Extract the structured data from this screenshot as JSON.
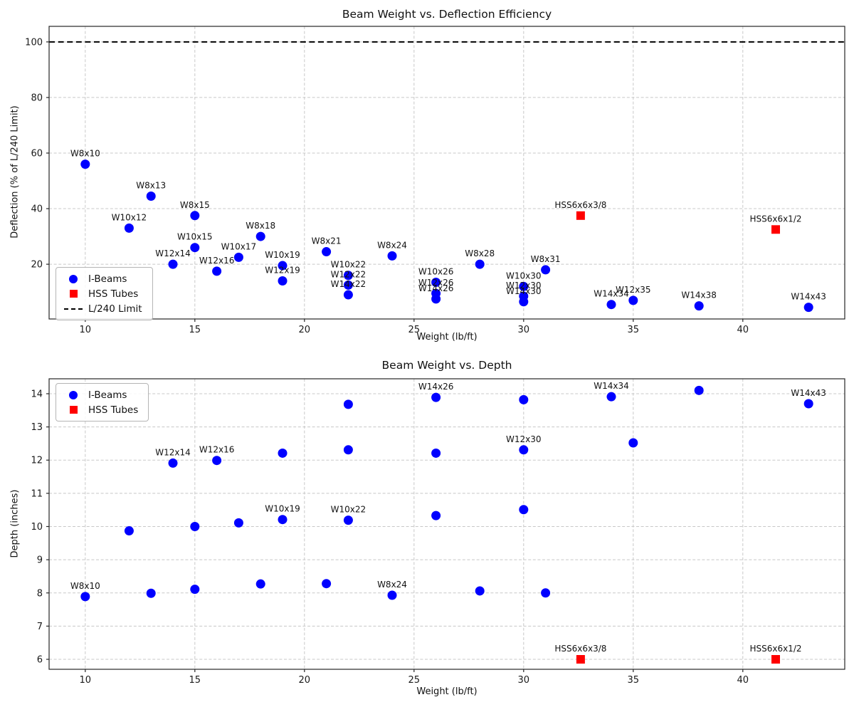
{
  "chart_data": [
    {
      "type": "scatter",
      "title": "Beam Weight vs. Deflection Efficiency",
      "xlabel": "Weight (lb/ft)",
      "ylabel": "Deflection (% of L/240 Limit)",
      "xlim": [
        8.35,
        44.65
      ],
      "ylim": [
        0.3,
        105.6
      ],
      "xticks": [
        10,
        15,
        20,
        25,
        30,
        35,
        40
      ],
      "yticks": [
        20,
        40,
        60,
        80,
        100
      ],
      "grid": true,
      "limit_line": {
        "y": 100,
        "label": "L/240 Limit",
        "color": "#000000",
        "style": "dashed"
      },
      "legend": {
        "position": "lower-left",
        "entries": [
          {
            "label": "I-Beams",
            "marker": "circle",
            "color": "#0000ff"
          },
          {
            "label": "HSS Tubes",
            "marker": "square",
            "color": "#ff0000"
          },
          {
            "label": "L/240 Limit",
            "marker": "dashed-line",
            "color": "#000000"
          }
        ]
      },
      "series": [
        {
          "name": "I-Beams",
          "marker": "circle",
          "color": "#0000ff",
          "points": [
            {
              "label": "W8x10",
              "x": 10,
              "y": 56,
              "annotated": true
            },
            {
              "label": "W10x12",
              "x": 12,
              "y": 33,
              "annotated": true
            },
            {
              "label": "W8x13",
              "x": 13,
              "y": 44.5,
              "annotated": true
            },
            {
              "label": "W12x14",
              "x": 14,
              "y": 20,
              "annotated": true
            },
            {
              "label": "W8x15",
              "x": 15,
              "y": 37.5,
              "annotated": true
            },
            {
              "label": "W10x15",
              "x": 15,
              "y": 26,
              "annotated": true
            },
            {
              "label": "W12x16",
              "x": 16,
              "y": 17.5,
              "annotated": true
            },
            {
              "label": "W10x17",
              "x": 17,
              "y": 22.5,
              "annotated": true
            },
            {
              "label": "W8x18",
              "x": 18,
              "y": 30,
              "annotated": true
            },
            {
              "label": "W10x19",
              "x": 19,
              "y": 19.5,
              "annotated": true
            },
            {
              "label": "W12x19",
              "x": 19,
              "y": 14,
              "annotated": true
            },
            {
              "label": "W8x21",
              "x": 21,
              "y": 24.5,
              "annotated": true
            },
            {
              "label": "W10x22",
              "x": 22,
              "y": 16,
              "annotated": true
            },
            {
              "label": "W12x22",
              "x": 22,
              "y": 12.5,
              "annotated": true
            },
            {
              "label": "W14x22",
              "x": 22,
              "y": 9,
              "annotated": true
            },
            {
              "label": "W8x24",
              "x": 24,
              "y": 23,
              "annotated": true
            },
            {
              "label": "W10x26",
              "x": 26,
              "y": 13.5,
              "annotated": true
            },
            {
              "label": "W12x26",
              "x": 26,
              "y": 9.5,
              "annotated": true
            },
            {
              "label": "W14x26",
              "x": 26,
              "y": 7.5,
              "annotated": true
            },
            {
              "label": "W8x28",
              "x": 28,
              "y": 20,
              "annotated": true
            },
            {
              "label": "W10x30",
              "x": 30,
              "y": 12,
              "annotated": true
            },
            {
              "label": "W12x30",
              "x": 30,
              "y": 8.5,
              "annotated": true
            },
            {
              "label": "W14x30",
              "x": 30,
              "y": 6.5,
              "annotated": true
            },
            {
              "label": "W8x31",
              "x": 31,
              "y": 18,
              "annotated": true
            },
            {
              "label": "W14x34",
              "x": 34,
              "y": 5.5,
              "annotated": true
            },
            {
              "label": "W12x35",
              "x": 35,
              "y": 7,
              "annotated": true
            },
            {
              "label": "W14x38",
              "x": 38,
              "y": 5,
              "annotated": true
            },
            {
              "label": "W14x43",
              "x": 43,
              "y": 4.5,
              "annotated": true
            }
          ]
        },
        {
          "name": "HSS Tubes",
          "marker": "square",
          "color": "#ff0000",
          "points": [
            {
              "label": "HSS6x6x3/8",
              "x": 32.6,
              "y": 37.5,
              "annotated": true
            },
            {
              "label": "HSS6x6x1/2",
              "x": 41.5,
              "y": 32.5,
              "annotated": true
            }
          ]
        }
      ]
    },
    {
      "type": "scatter",
      "title": "Beam Weight vs. Depth",
      "xlabel": "Weight (lb/ft)",
      "ylabel": "Depth (inches)",
      "xlim": [
        8.35,
        44.65
      ],
      "ylim": [
        5.7,
        14.45
      ],
      "xticks": [
        10,
        15,
        20,
        25,
        30,
        35,
        40
      ],
      "yticks": [
        6,
        7,
        8,
        9,
        10,
        11,
        12,
        13,
        14
      ],
      "grid": true,
      "legend": {
        "position": "upper-left",
        "entries": [
          {
            "label": "I-Beams",
            "marker": "circle",
            "color": "#0000ff"
          },
          {
            "label": "HSS Tubes",
            "marker": "square",
            "color": "#ff0000"
          }
        ]
      },
      "series": [
        {
          "name": "I-Beams",
          "marker": "circle",
          "color": "#0000ff",
          "points": [
            {
              "label": "W8x10",
              "x": 10,
              "y": 7.89,
              "annotated": true
            },
            {
              "label": "W10x12",
              "x": 12,
              "y": 9.87,
              "annotated": false
            },
            {
              "label": "W8x13",
              "x": 13,
              "y": 7.99,
              "annotated": false
            },
            {
              "label": "W12x14",
              "x": 14,
              "y": 11.91,
              "annotated": true
            },
            {
              "label": "W8x15",
              "x": 15,
              "y": 8.11,
              "annotated": false
            },
            {
              "label": "W10x15",
              "x": 15,
              "y": 10.0,
              "annotated": false
            },
            {
              "label": "W12x16",
              "x": 16,
              "y": 11.99,
              "annotated": true
            },
            {
              "label": "W10x17",
              "x": 17,
              "y": 10.11,
              "annotated": false
            },
            {
              "label": "W8x18",
              "x": 18,
              "y": 8.27,
              "annotated": false
            },
            {
              "label": "W10x19",
              "x": 19,
              "y": 10.21,
              "annotated": true
            },
            {
              "label": "W12x19",
              "x": 19,
              "y": 12.21,
              "annotated": false
            },
            {
              "label": "W8x21",
              "x": 21,
              "y": 8.28,
              "annotated": false
            },
            {
              "label": "W10x22",
              "x": 22,
              "y": 10.19,
              "annotated": true
            },
            {
              "label": "W12x22",
              "x": 22,
              "y": 12.31,
              "annotated": false
            },
            {
              "label": "W14x22",
              "x": 22,
              "y": 13.68,
              "annotated": false
            },
            {
              "label": "W8x24",
              "x": 24,
              "y": 7.93,
              "annotated": true
            },
            {
              "label": "W10x26",
              "x": 26,
              "y": 10.33,
              "annotated": false
            },
            {
              "label": "W12x26",
              "x": 26,
              "y": 12.21,
              "annotated": false
            },
            {
              "label": "W14x26",
              "x": 26,
              "y": 13.89,
              "annotated": true
            },
            {
              "label": "W8x28",
              "x": 28,
              "y": 8.06,
              "annotated": false
            },
            {
              "label": "W10x30",
              "x": 30,
              "y": 10.51,
              "annotated": false
            },
            {
              "label": "W12x30",
              "x": 30,
              "y": 12.31,
              "annotated": true
            },
            {
              "label": "W14x30",
              "x": 30,
              "y": 13.82,
              "annotated": false
            },
            {
              "label": "W8x31",
              "x": 31,
              "y": 8.0,
              "annotated": false
            },
            {
              "label": "W14x34",
              "x": 34,
              "y": 13.91,
              "annotated": true
            },
            {
              "label": "W12x35",
              "x": 35,
              "y": 12.52,
              "annotated": false
            },
            {
              "label": "W14x38",
              "x": 38,
              "y": 14.1,
              "annotated": false
            },
            {
              "label": "W14x43",
              "x": 43,
              "y": 13.7,
              "annotated": true
            }
          ]
        },
        {
          "name": "HSS Tubes",
          "marker": "square",
          "color": "#ff0000",
          "points": [
            {
              "label": "HSS6x6x3/8",
              "x": 32.6,
              "y": 6.0,
              "annotated": true
            },
            {
              "label": "HSS6x6x1/2",
              "x": 41.5,
              "y": 6.0,
              "annotated": true
            }
          ]
        }
      ]
    }
  ]
}
